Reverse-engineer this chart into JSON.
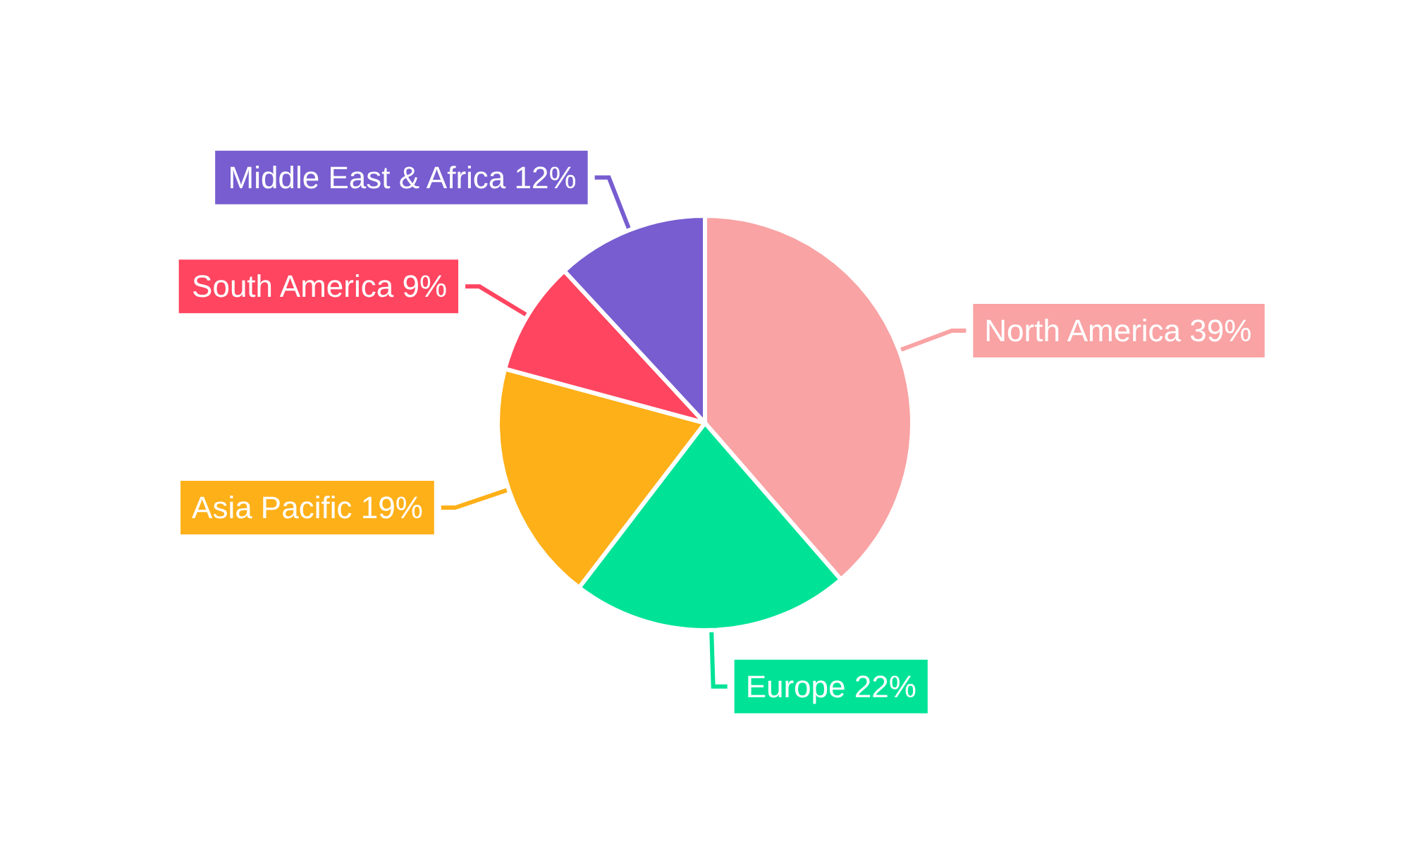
{
  "chart_data": {
    "type": "pie",
    "categories": [
      "North America",
      "Europe",
      "Asia Pacific",
      "South America",
      "Middle East & Africa"
    ],
    "values": [
      39,
      22,
      19,
      9,
      12
    ],
    "value_labels": [
      "39%",
      "22%",
      "19%",
      "9%",
      "12%"
    ],
    "colors": [
      "#f9a3a4",
      "#00e396",
      "#feb019",
      "#ff4560",
      "#775dd0"
    ],
    "legend": false
  }
}
